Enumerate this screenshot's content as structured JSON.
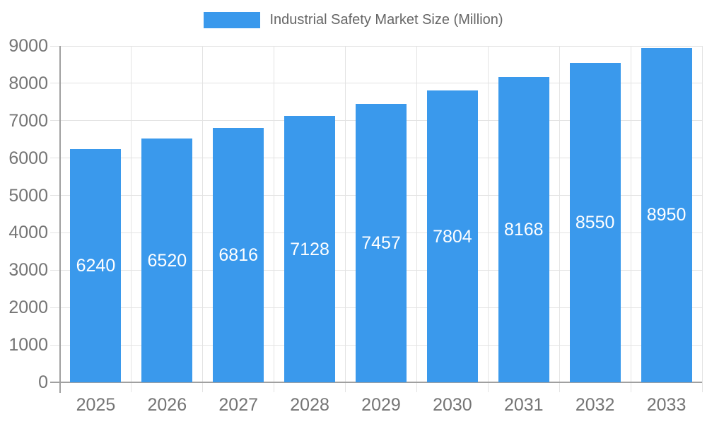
{
  "chart_data": {
    "type": "bar",
    "title": "Industrial Safety Market Size (Million)",
    "series_name": "Industrial Safety Market Size (Million)",
    "categories": [
      "2025",
      "2026",
      "2027",
      "2028",
      "2029",
      "2030",
      "2031",
      "2032",
      "2033"
    ],
    "values": [
      6240,
      6520,
      6816,
      7128,
      7457,
      7804,
      8168,
      8550,
      8950
    ],
    "xlabel": "",
    "ylabel": "",
    "ylim": [
      0,
      9000
    ],
    "yticks": [
      0,
      1000,
      2000,
      3000,
      4000,
      5000,
      6000,
      7000,
      8000,
      9000
    ],
    "grid": true,
    "legend_position": "top",
    "value_label_position": "inside-middle"
  },
  "colors": {
    "bar": "#3A99EC",
    "bar_label": "#FFFFFF",
    "axis_line": "#A0A0A0",
    "grid_line": "#E3E3E3",
    "tick_label": "#757575",
    "legend_text": "#666666",
    "background": "#FFFFFF"
  }
}
